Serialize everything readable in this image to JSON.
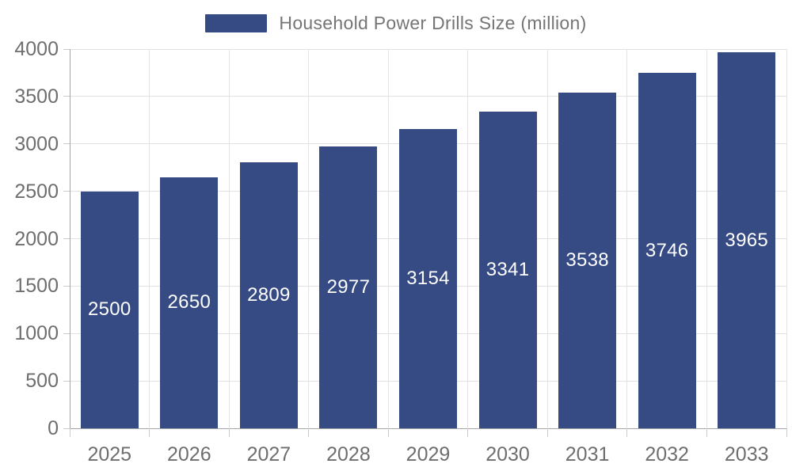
{
  "legend": {
    "label": "Household Power Drills Size (million)",
    "swatch_color": "#364a84"
  },
  "chart_data": {
    "type": "bar",
    "title": "",
    "xlabel": "",
    "ylabel": "",
    "series_name": "Household Power Drills Size (million)",
    "categories": [
      "2025",
      "2026",
      "2027",
      "2028",
      "2029",
      "2030",
      "2031",
      "2032",
      "2033"
    ],
    "values": [
      2500,
      2650,
      2809,
      2977,
      3154,
      3341,
      3538,
      3746,
      3965
    ],
    "ylim": [
      0,
      4000
    ],
    "ytick_step": 500,
    "ytick_labels": [
      "0",
      "500",
      "1000",
      "1500",
      "2000",
      "2500",
      "3000",
      "3500",
      "4000"
    ],
    "bar_color": "#364a84",
    "bar_label_color": "#ffffff",
    "grid": true,
    "legend_position": "top"
  }
}
